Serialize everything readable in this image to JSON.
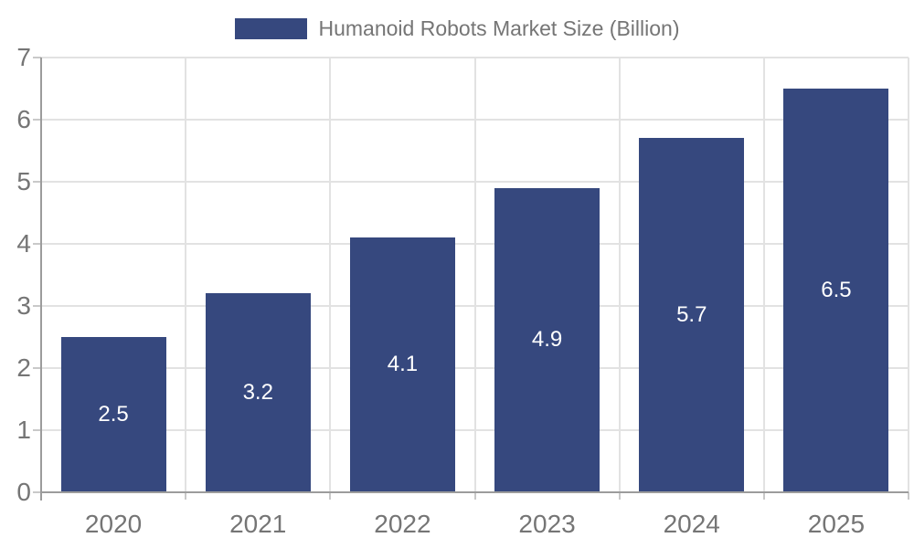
{
  "chart_data": {
    "type": "bar",
    "title": "Humanoid Robots Market Size (Billion)",
    "legend": [
      "Humanoid Robots Market Size (Billion)"
    ],
    "legend_position": "top-center",
    "categories": [
      "2020",
      "2021",
      "2022",
      "2023",
      "2024",
      "2025"
    ],
    "series": [
      {
        "name": "Humanoid Robots Market Size (Billion)",
        "values": [
          2.5,
          3.2,
          4.1,
          4.9,
          5.7,
          6.5
        ],
        "value_labels": [
          "2.5",
          "3.2",
          "4.1",
          "4.9",
          "5.7",
          "6.5"
        ]
      }
    ],
    "xlabel": "",
    "ylabel": "",
    "ylim": [
      0,
      7
    ],
    "yticks": [
      0,
      1,
      2,
      3,
      4,
      5,
      6,
      7
    ],
    "grid": true,
    "value_label_position": "inside-center",
    "colors": {
      "bar": "#36487E",
      "value_label": "#FFFFFF",
      "tick_text": "#757575",
      "axis": "#9C9C9C",
      "grid": "#E2E2E2",
      "tick_mark": "#C9C9C9",
      "background": "#FFFFFF"
    }
  }
}
